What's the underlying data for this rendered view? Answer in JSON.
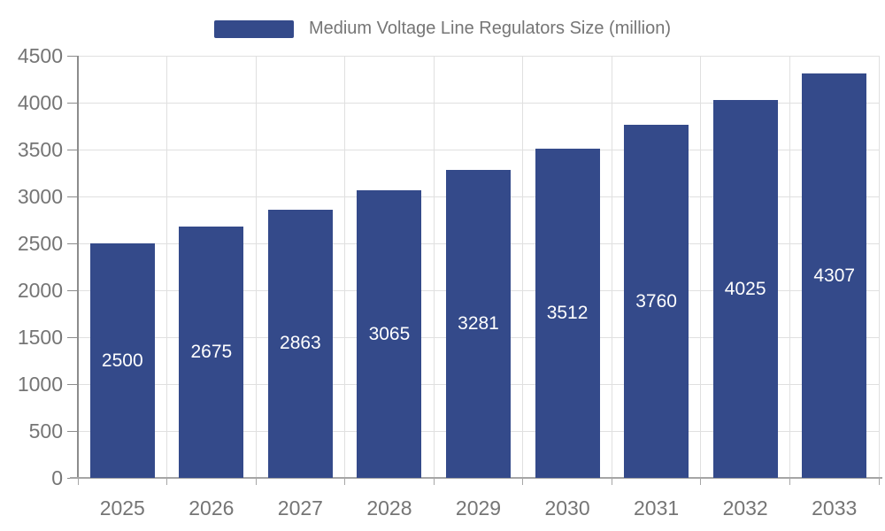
{
  "legend": {
    "label": "Medium Voltage Line Regulators Size (million)"
  },
  "chart_data": {
    "type": "bar",
    "title": "Medium Voltage Line Regulators Size (million)",
    "categories": [
      "2025",
      "2026",
      "2027",
      "2028",
      "2029",
      "2030",
      "2031",
      "2032",
      "2033"
    ],
    "values": [
      2500,
      2675,
      2863,
      3065,
      3281,
      3512,
      3760,
      4025,
      4307
    ],
    "xlabel": "",
    "ylabel": "",
    "ylim": [
      0,
      4500
    ],
    "ytick_interval": 500,
    "ytick_labels": [
      "0",
      "500",
      "1000",
      "1500",
      "2000",
      "2500",
      "3000",
      "3500",
      "4000",
      "4500"
    ],
    "grid": true,
    "legend_position": "top-center",
    "value_labels_position": "inside-center"
  },
  "colors": {
    "bar": "#344A8A",
    "value_label": "#ffffff",
    "axis_label": "#757575",
    "gridline": "#e0e0e0",
    "y_axis_line": "#8c8c8c",
    "x_axis_line": "#a6a6a6",
    "background": "#ffffff"
  }
}
